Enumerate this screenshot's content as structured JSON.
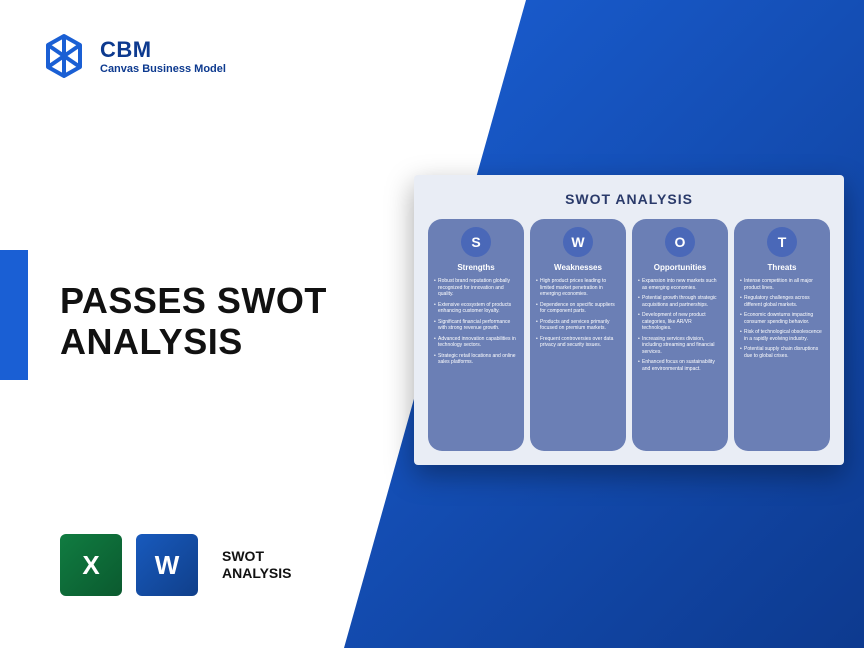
{
  "brand": {
    "title": "CBM",
    "subtitle": "Canvas Business Model",
    "logo_color": "#1a5fd4"
  },
  "heading": {
    "line1": "PASSES SWOT",
    "line2": "ANALYSIS"
  },
  "bottom": {
    "excel_letter": "X",
    "word_letter": "W",
    "label_line1": "SWOT",
    "label_line2": "ANALYSIS"
  },
  "swot": {
    "title": "SWOT ANALYSIS",
    "columns": [
      {
        "letter": "S",
        "heading": "Strengths",
        "items": [
          "Robust brand reputation globally recognized for innovation and quality.",
          "Extensive ecosystem of products enhancing customer loyalty.",
          "Significant financial performance with strong revenue growth.",
          "Advanced innovation capabilities in technology sectors.",
          "Strategic retail locations and online sales platforms."
        ]
      },
      {
        "letter": "W",
        "heading": "Weaknesses",
        "items": [
          "High product prices leading to limited market penetration in emerging economies.",
          "Dependence on specific suppliers for component parts.",
          "Products and services primarily focused on premium markets.",
          "Frequent controversies over data privacy and security issues."
        ]
      },
      {
        "letter": "O",
        "heading": "Opportunities",
        "items": [
          "Expansion into new markets such as emerging economies.",
          "Potential growth through strategic acquisitions and partnerships.",
          "Development of new product categories, like AR/VR technologies.",
          "Increasing services division, including streaming and financial services.",
          "Enhanced focus on sustainability and environmental impact."
        ]
      },
      {
        "letter": "T",
        "heading": "Threats",
        "items": [
          "Intense competition in all major product lines.",
          "Regulatory challenges across different global markets.",
          "Economic downturns impacting consumer spending behavior.",
          "Risk of technological obsolescence in a rapidly evolving industry.",
          "Potential supply chain disruptions due to global crises."
        ]
      }
    ]
  },
  "colors": {
    "blue_primary": "#1a5fd4",
    "blue_dark": "#0d3a8f",
    "card_bg": "#e9edf5",
    "col_bg": "#6b7fb5",
    "circle_bg": "#4a68b8",
    "excel": "#107c41",
    "word": "#185abd"
  }
}
